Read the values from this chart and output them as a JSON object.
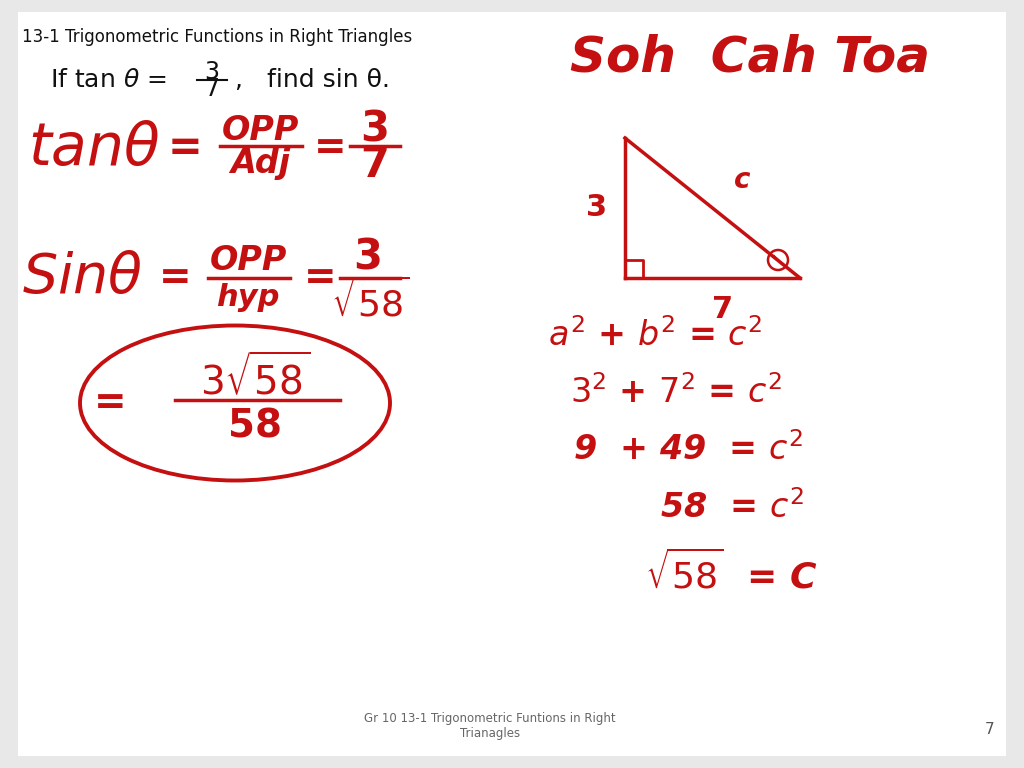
{
  "bg_color": "#e8e8e8",
  "inner_bg_color": "#ffffff",
  "title_text": "13-1 Trigonometric Functions in Right Triangles",
  "title_color": "#222222",
  "red_color": "#c41010",
  "black_color": "#111111",
  "footer_text": "Gr 10 13-1 Trigonometric Funtions in Right\nTrianagles",
  "page_number": "7"
}
